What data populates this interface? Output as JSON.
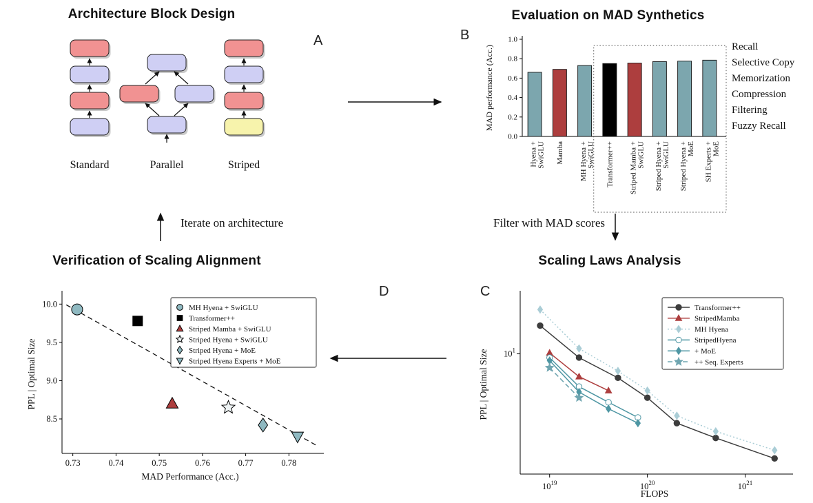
{
  "panel_letters": {
    "a": "A",
    "b": "B",
    "c": "C",
    "d": "D"
  },
  "flow": {
    "iterate_label": "Iterate on architecture",
    "filter_label": "Filter with MAD scores"
  },
  "block_design": {
    "title": "Architecture Block Design",
    "labels": [
      "Standard",
      "Parallel",
      "Striped"
    ],
    "colors": {
      "red": "#f19292",
      "lavender": "#cfcff4",
      "yellow": "#f7f3ac"
    },
    "standard_stack": [
      "red",
      "lavender",
      "red",
      "lavender"
    ],
    "striped_stack": [
      "red",
      "lavender",
      "red",
      "yellow"
    ],
    "parallel": {
      "top": "lavender",
      "left": "red",
      "right": "lavender",
      "bottom": "lavender"
    }
  },
  "chart_data": [
    {
      "id": "mad-synthetics",
      "type": "bar",
      "title": "Evaluation on MAD Synthetics",
      "ylabel": "MAD performance (Acc.)",
      "ylim": [
        0,
        1
      ],
      "yticks": [
        0.0,
        0.2,
        0.4,
        0.6,
        0.8,
        1.0
      ],
      "categories": [
        "Hyena +\nSwiGLU",
        "Mamba",
        "MH Hyena +\nSwiGLU",
        "Transformer++",
        "Striped Mamba +\nSwiGLU",
        "Striped Hyena +\nSwiGLU",
        "Striped Hyena +\nMoE",
        "SH Experts +\nMoE"
      ],
      "values": [
        0.66,
        0.69,
        0.73,
        0.75,
        0.755,
        0.77,
        0.775,
        0.785
      ],
      "bar_colors": [
        "teal",
        "red",
        "teal",
        "black",
        "red",
        "teal",
        "teal",
        "teal"
      ],
      "palette": {
        "teal": "#7ca6ae",
        "red": "#ad3e3e",
        "black": "#000000"
      },
      "highlight_box": {
        "from_index": 3,
        "to_index": 7
      },
      "task_list": [
        "Recall",
        "Selective Copy",
        "Memorization",
        "Compression",
        "Filtering",
        "Fuzzy Recall"
      ]
    },
    {
      "id": "scaling-alignment",
      "type": "scatter",
      "title": "Verification of Scaling Alignment",
      "xlabel": "MAD Performance (Acc.)",
      "ylabel": "PPL | Optimal Size",
      "xlim": [
        0.7275,
        0.7868
      ],
      "ylim": [
        8.05,
        10.12
      ],
      "xticks": [
        0.73,
        0.74,
        0.75,
        0.76,
        0.77,
        0.78
      ],
      "yticks": [
        8.5,
        9.0,
        9.5,
        10.0
      ],
      "trendline": {
        "x1": 0.7285,
        "y1": 9.99,
        "x2": 0.7865,
        "y2": 8.15,
        "style": "dashed"
      },
      "legend_position": "upper right",
      "points": [
        {
          "label": "MH Hyena + SwiGLU",
          "x": 0.731,
          "y": 9.93,
          "marker": "circle",
          "color": "#8fb9c1"
        },
        {
          "label": "Transformer++",
          "x": 0.745,
          "y": 9.78,
          "marker": "square",
          "color": "#000000"
        },
        {
          "label": "Striped Mamba + SwiGLU",
          "x": 0.753,
          "y": 8.7,
          "marker": "triangle-up",
          "color": "#ad3e3e"
        },
        {
          "label": "Striped Hyena + SwiGLU",
          "x": 0.766,
          "y": 8.65,
          "marker": "star",
          "color": "#eef3f4"
        },
        {
          "label": "Striped Hyena + MoE",
          "x": 0.774,
          "y": 8.42,
          "marker": "diamond",
          "color": "#8fb9c1"
        },
        {
          "label": "Striped Hyena Experts + MoE",
          "x": 0.782,
          "y": 8.27,
          "marker": "triangle-down",
          "color": "#8fb9c1"
        }
      ]
    },
    {
      "id": "scaling-laws",
      "type": "line",
      "title": "Scaling Laws Analysis",
      "xlabel": "FLOPS",
      "ylabel": "PPL | Optimal Size",
      "xscale": "log",
      "yscale": "log",
      "xlim": [
        5e+18,
        2.8e+21
      ],
      "ylim": [
        2.7,
        19
      ],
      "xticks": [
        1e+19,
        1e+20,
        1e+21
      ],
      "yticks": [
        10
      ],
      "legend_position": "upper right",
      "series": [
        {
          "name": "Transformer++",
          "color": "#3d3d3d",
          "marker": "circle",
          "linestyle": "solid",
          "x": [
            8e+18,
            2e+19,
            5e+19,
            1e+20,
            2e+20,
            5e+20,
            2e+21
          ],
          "y": [
            13.6,
            9.6,
            7.7,
            6.2,
            4.7,
            4.0,
            3.2
          ]
        },
        {
          "name": "StripedMamba",
          "color": "#ad3e3e",
          "marker": "triangle-up",
          "linestyle": "solid",
          "x": [
            1e+19,
            2e+19,
            4e+19
          ],
          "y": [
            10.1,
            7.8,
            6.7
          ]
        },
        {
          "name": "MH Hyena",
          "color": "#aacdd6",
          "marker": "diamond",
          "linestyle": "dotted",
          "x": [
            8e+18,
            2e+19,
            5e+19,
            1e+20,
            2e+20,
            5e+20,
            2e+21
          ],
          "y": [
            16.2,
            10.6,
            8.3,
            6.7,
            5.1,
            4.3,
            3.5
          ]
        },
        {
          "name": "StripedHyena",
          "color": "#4e96a3",
          "marker": "circle-open",
          "linestyle": "solid",
          "x": [
            1e+19,
            2e+19,
            4e+19,
            8e+19
          ],
          "y": [
            9.6,
            7.0,
            5.9,
            5.0
          ]
        },
        {
          "name": "+ MoE",
          "color": "#4e96a3",
          "marker": "diamond",
          "linestyle": "solid",
          "x": [
            1e+19,
            2e+19,
            4e+19,
            8e+19
          ],
          "y": [
            9.3,
            6.6,
            5.5,
            4.7
          ]
        },
        {
          "name": "++ Seq. Experts",
          "color": "#6fa5b0",
          "marker": "star",
          "linestyle": "dashed",
          "x": [
            1e+19,
            2e+19
          ],
          "y": [
            8.6,
            6.2
          ]
        }
      ]
    }
  ]
}
